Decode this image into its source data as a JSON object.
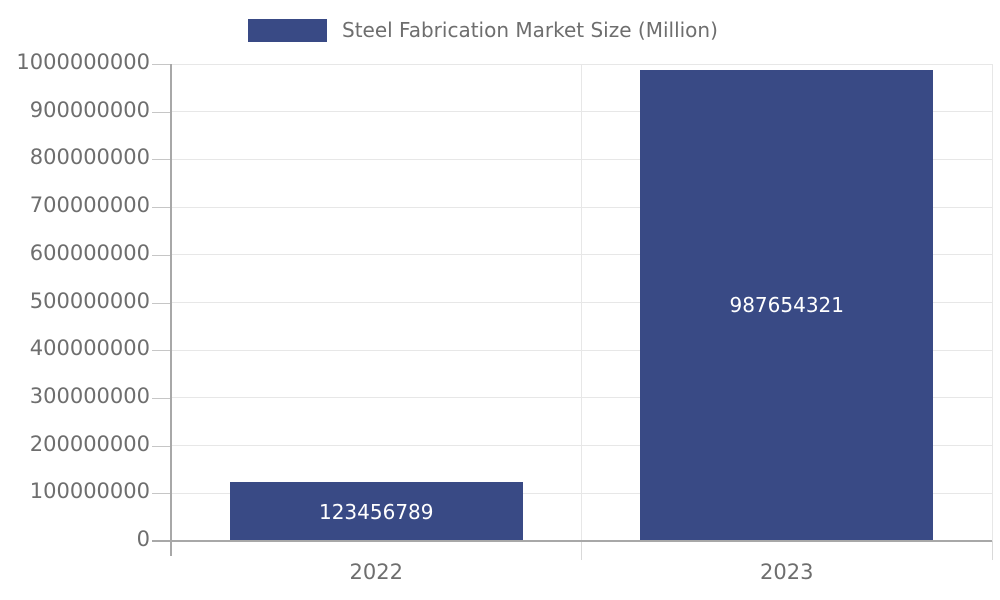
{
  "legend": {
    "label": "Steel Fabrication Market Size (Million)"
  },
  "chart_data": {
    "type": "bar",
    "title": "Steel Fabrication Market Size (Million)",
    "categories": [
      "2022",
      "2023"
    ],
    "values": [
      123456789,
      987654321
    ],
    "value_labels": [
      "123456789",
      "987654321"
    ],
    "xlabel": "",
    "ylabel": "",
    "ylim": [
      0,
      1000000000
    ],
    "ytick_interval": 100000000,
    "ytick_labels": [
      "0",
      "100000000",
      "200000000",
      "300000000",
      "400000000",
      "500000000",
      "600000000",
      "700000000",
      "800000000",
      "900000000",
      "1000000000"
    ],
    "grid": "on",
    "legend_position": "top-center",
    "colors": {
      "bar_fill": "#394a85",
      "axis_line": "#a8a8a8",
      "gridline": "#e7e7e7",
      "tick_text": "#6e6e6e",
      "value_label_text": "#ffffff"
    }
  }
}
